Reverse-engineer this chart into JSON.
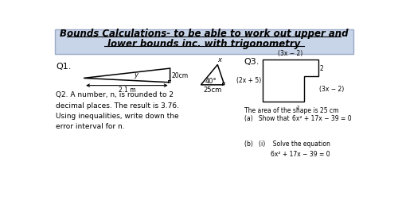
{
  "title_line1": "Bounds Calculations- to be able to work out upper and",
  "title_line2": "lower bounds inc. with trigonometry",
  "title_bg": "#c8d4e8",
  "bg_color": "#ffffff",
  "q1_label": "Q1.",
  "q2_text": "Q2. A number, n, is rounded to 2\ndecimal places. The result is 3.76.\nUsing inequalities, write down the\nerror interval for n.",
  "q3_label": "Q3.",
  "tri1_y": "y",
  "tri1_base": "2.1 m",
  "tri1_side": "20cm",
  "tri2_angle": "40°",
  "tri2_base": "25cm",
  "tri2_top": "x",
  "shape_top": "(3x − 2)",
  "shape_left": "(2x + 5)",
  "shape_right_top": "2",
  "shape_right_bottom": "(3x − 2)",
  "area_text": "The area of the shape is 25 cm",
  "show_that_label": "(a)   Show that",
  "eq1": "6x² + 17x − 39 = 0",
  "solve_label": "(b)   (i)    Solve the equation",
  "eq2": "6x² + 17x − 39 = 0"
}
